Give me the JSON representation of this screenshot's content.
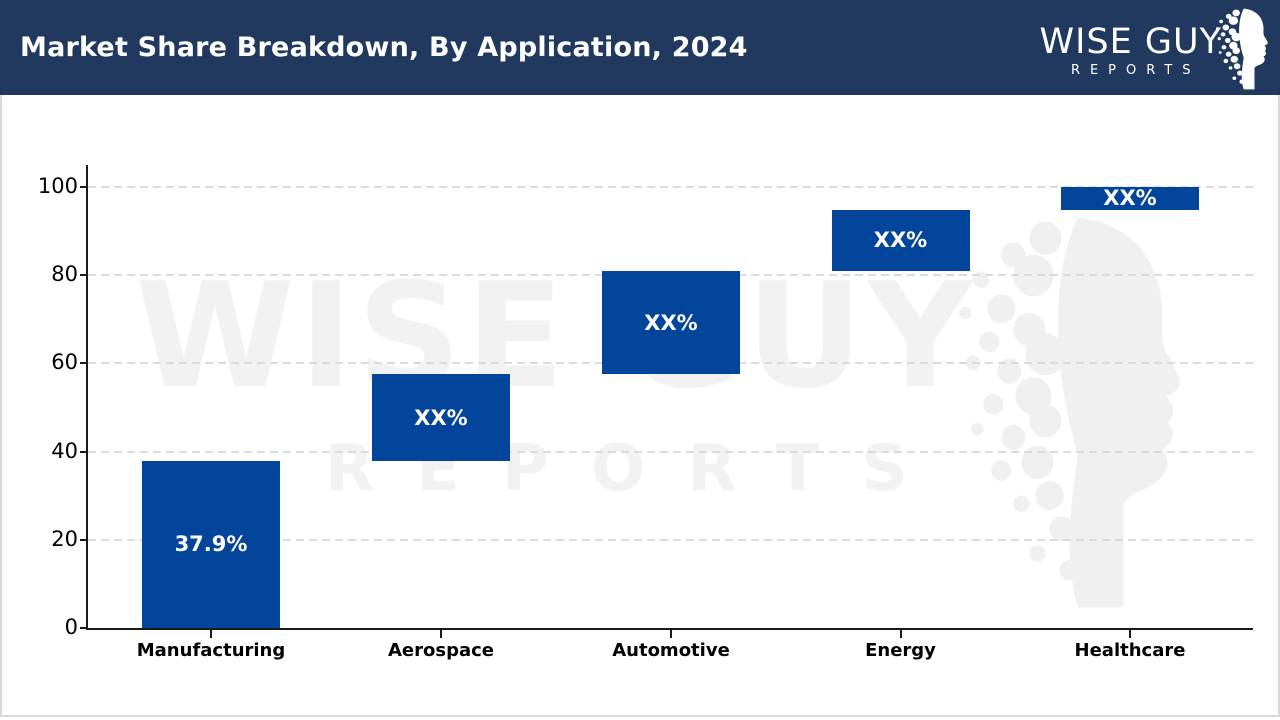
{
  "header": {
    "title": "Market Share Breakdown, By Application, 2024",
    "logo": {
      "line1": "WISE GUY",
      "line2": "REPORTS"
    }
  },
  "watermark": {
    "line1": "WISE GUY",
    "line2": "REPORTS"
  },
  "colors": {
    "header_bg": "#21395E",
    "bar": "#04459C",
    "bar_label": "#FFFFFF",
    "gridline": "#DBDBDB",
    "axis": "#1A1A1A",
    "watermark": "#F2F2F2"
  },
  "chart_data": {
    "type": "bar",
    "subtype": "waterfall",
    "title": "Market Share Breakdown, By Application, 2024",
    "xlabel": "",
    "ylabel": "",
    "categories": [
      "Manufacturing",
      "Aerospace",
      "Automotive",
      "Energy",
      "Healthcare"
    ],
    "segments": [
      {
        "category": "Manufacturing",
        "start": 0,
        "end": 37.9,
        "label": "37.9%"
      },
      {
        "category": "Aerospace",
        "start": 37.9,
        "end": 57.5,
        "label": "XX%"
      },
      {
        "category": "Automotive",
        "start": 57.5,
        "end": 81.0,
        "label": "XX%"
      },
      {
        "category": "Energy",
        "start": 81.0,
        "end": 94.8,
        "label": "XX%"
      },
      {
        "category": "Healthcare",
        "start": 94.8,
        "end": 100,
        "label": "XX%"
      }
    ],
    "yticks": [
      0,
      20,
      40,
      60,
      80,
      100
    ],
    "ylim": [
      0,
      105
    ],
    "grid": "horizontal-dashed",
    "legend": "none"
  }
}
